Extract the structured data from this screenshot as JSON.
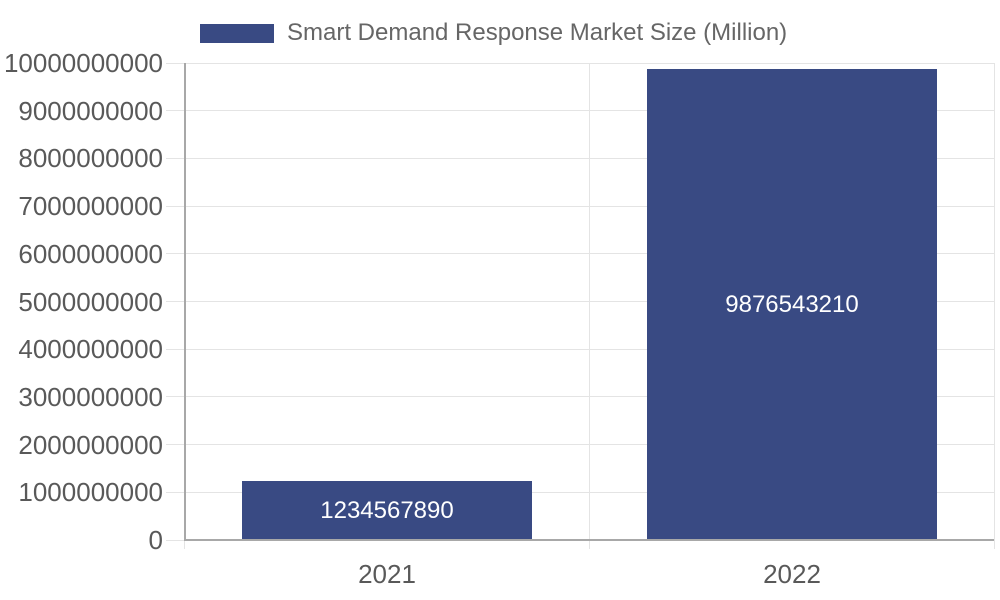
{
  "legend": {
    "label": "Smart Demand Response Market Size (Million)"
  },
  "colors": {
    "bar": "#394A83",
    "grid": "#E4E4E4",
    "axis": "#A8A8A8",
    "tick_label": "#595959",
    "legend_text": "#666666",
    "value_label": "#FFFFFF",
    "background": "#FFFFFF"
  },
  "chart_data": {
    "type": "bar",
    "title": "Smart Demand Response Market Size (Million)",
    "categories": [
      "2021",
      "2022"
    ],
    "values": [
      1234567890,
      9876543210
    ],
    "value_labels": [
      "1234567890",
      "9876543210"
    ],
    "series": [
      {
        "name": "Smart Demand Response Market Size (Million)",
        "values": [
          1234567890,
          9876543210
        ]
      }
    ],
    "xlabel": "",
    "ylabel": "",
    "ylim": [
      0,
      10000000000
    ],
    "ytick_step": 1000000000,
    "ytick_labels": [
      "0",
      "1000000000",
      "2000000000",
      "3000000000",
      "4000000000",
      "5000000000",
      "6000000000",
      "7000000000",
      "8000000000",
      "9000000000",
      "10000000000"
    ],
    "grid": true,
    "legend_position": "top",
    "bar_color": "#394A83"
  }
}
